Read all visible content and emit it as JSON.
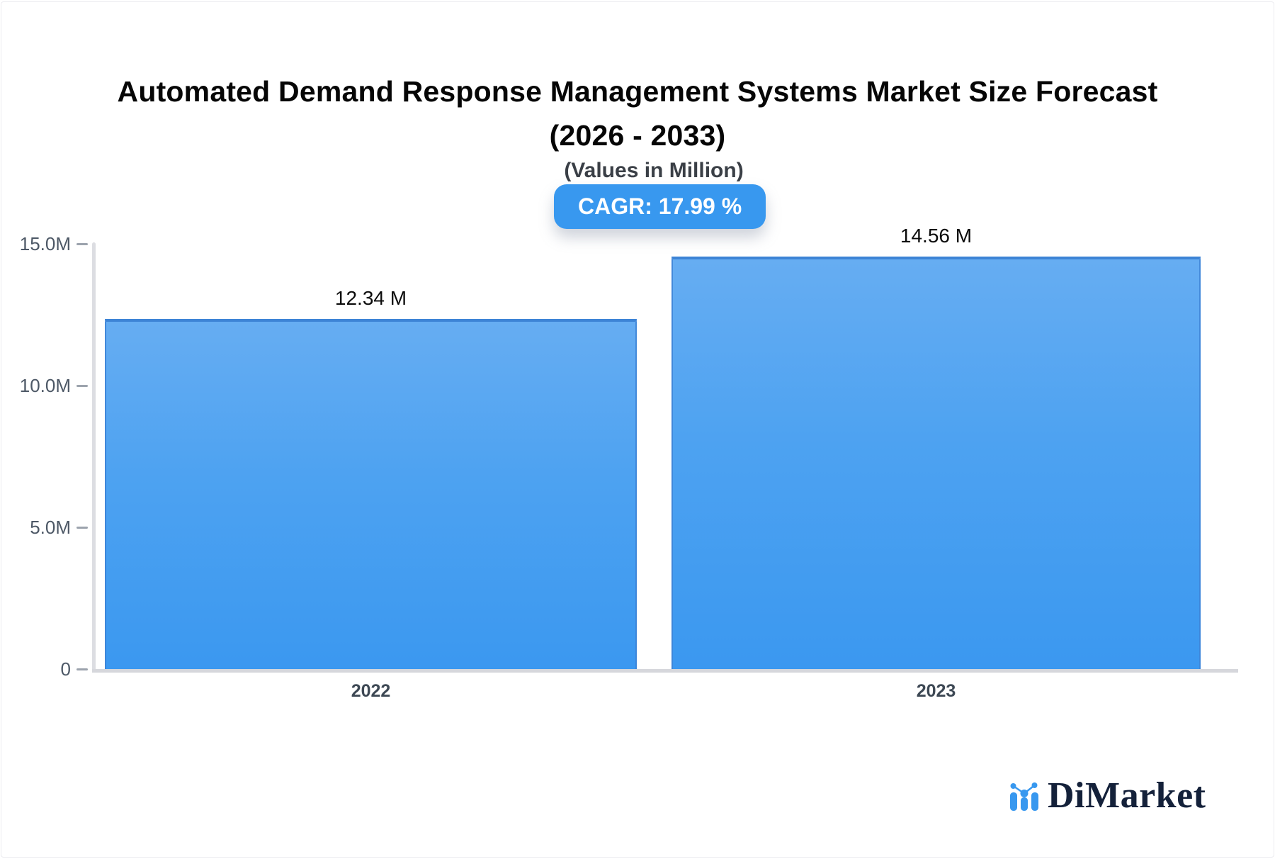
{
  "header": {
    "title": "Automated Demand Response Management Systems Market Size Forecast (2026 - 2033)",
    "subtitle": "(Values in Million)",
    "cagr_badge": "CAGR: 17.99 %"
  },
  "logo": {
    "text": "DiMarket",
    "icon": "mini-bar-line-chart-icon"
  },
  "colors": {
    "accent_blue": "#3898ef",
    "bar_gradient_top": "#66adf2",
    "bar_gradient_bottom": "#3b98f0",
    "bar_border": "#3d84d6",
    "axis_line": "#d9dade",
    "tick_text": "#4d5866",
    "x_label_text": "#3d4854",
    "logo_navy": "#14213a"
  },
  "chart_data": {
    "type": "bar",
    "categories": [
      "2022",
      "2023"
    ],
    "values": [
      12.34,
      14.56
    ],
    "value_labels": [
      "12.34 M",
      "14.56 M"
    ],
    "title": "Automated Demand Response Management Systems Market Size Forecast (2026 - 2033)",
    "subtitle": "(Values in Million)",
    "cagr_percent": 17.99,
    "unit": "Million (M)",
    "xlabel": "",
    "ylabel": "",
    "ylim": [
      0,
      15
    ],
    "yticks": [
      {
        "value": 0,
        "label": "0"
      },
      {
        "value": 5,
        "label": "5.0M"
      },
      {
        "value": 10,
        "label": "10.0M"
      },
      {
        "value": 15,
        "label": "15.0M"
      }
    ],
    "grid": false,
    "legend": false,
    "bar_color": "#3b98f0"
  }
}
